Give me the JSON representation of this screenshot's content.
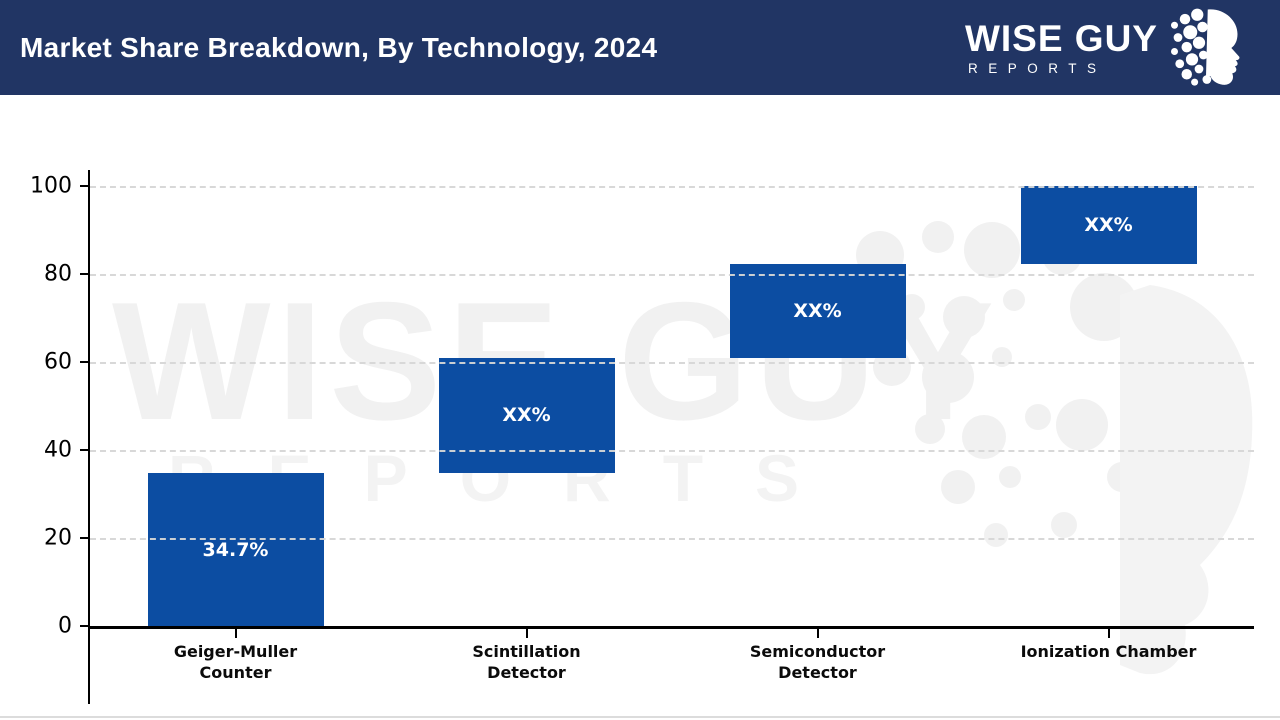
{
  "header": {
    "title": "Market Share Breakdown, By Technology, 2024",
    "logo": {
      "wordmark": "WISE GUY",
      "subtext": "REPORTS"
    }
  },
  "watermark": {
    "line1": "WISE GUY",
    "line2": "REPORTS"
  },
  "chart_data": {
    "type": "bar",
    "subtype": "waterfall",
    "title": "Market Share Breakdown, By Technology, 2024",
    "categories": [
      "Geiger-Muller Counter",
      "Scintillation Detector",
      "Semiconductor Detector",
      "Ionization Chamber"
    ],
    "category_label_lines": [
      [
        "Geiger-Muller",
        "Counter"
      ],
      [
        "Scintillation",
        "Detector"
      ],
      [
        "Semiconductor",
        "Detector"
      ],
      [
        "Ionization Chamber"
      ]
    ],
    "segments": [
      {
        "category": "Geiger-Muller Counter",
        "start": 0,
        "end": 34.7,
        "label": "34.7%"
      },
      {
        "category": "Scintillation Detector",
        "start": 34.7,
        "end": 61,
        "label": "XX%"
      },
      {
        "category": "Semiconductor Detector",
        "start": 61,
        "end": 82.3,
        "label": "XX%"
      },
      {
        "category": "Ionization Chamber",
        "start": 82.3,
        "end": 100,
        "label": "XX%"
      }
    ],
    "xlabel": "",
    "ylabel": "",
    "ylim": [
      0,
      100
    ],
    "yticks": [
      0,
      20,
      40,
      60,
      80,
      100
    ],
    "grid": "horizontal-dashed",
    "legend": "none",
    "bar_color": "#0c4da2",
    "bar_label_color": "#ffffff",
    "header_color": "#213564",
    "gridline_color": "#d6d6d6",
    "axis_color": "#000000"
  }
}
